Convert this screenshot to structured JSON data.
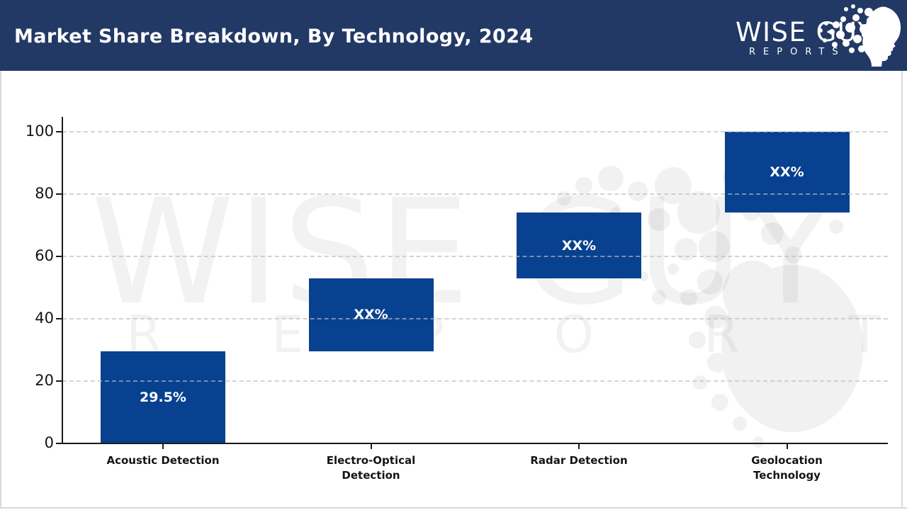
{
  "header": {
    "title": "Market Share Breakdown, By Technology, 2024",
    "logo": {
      "primary": "WISE GUY",
      "secondary": "REPORTS"
    }
  },
  "watermark": {
    "line1": "WISE GUY",
    "line2": "R E P O R T S"
  },
  "colors": {
    "header_background": "#223966",
    "bar_fill": "#07418f",
    "bar_label_text": "#ffffff",
    "axis": "#1a1a1a",
    "gridline": "#d9d9d9",
    "watermark_gray": "#f1f1f1"
  },
  "chart_data": {
    "type": "bar",
    "subtype": "waterfall",
    "title": "Market Share Breakdown, By Technology, 2024",
    "xlabel": "",
    "ylabel": "",
    "ylim": [
      0,
      105
    ],
    "yticks": [
      0,
      20,
      40,
      60,
      80,
      100
    ],
    "grid": "horizontal-dashed",
    "legend": "none",
    "categories": [
      "Acoustic Detection",
      "Electro-Optical Detection",
      "Radar Detection",
      "Geolocation Technology"
    ],
    "segments": [
      {
        "category": "Acoustic Detection",
        "start": 0,
        "end": 29.5,
        "label": "29.5%"
      },
      {
        "category": "Electro-Optical Detection",
        "start": 29.5,
        "end": 53,
        "label": "XX%"
      },
      {
        "category": "Radar Detection",
        "start": 53,
        "end": 74,
        "label": "XX%"
      },
      {
        "category": "Geolocation Technology",
        "start": 74,
        "end": 100,
        "label": "XX%"
      }
    ]
  }
}
